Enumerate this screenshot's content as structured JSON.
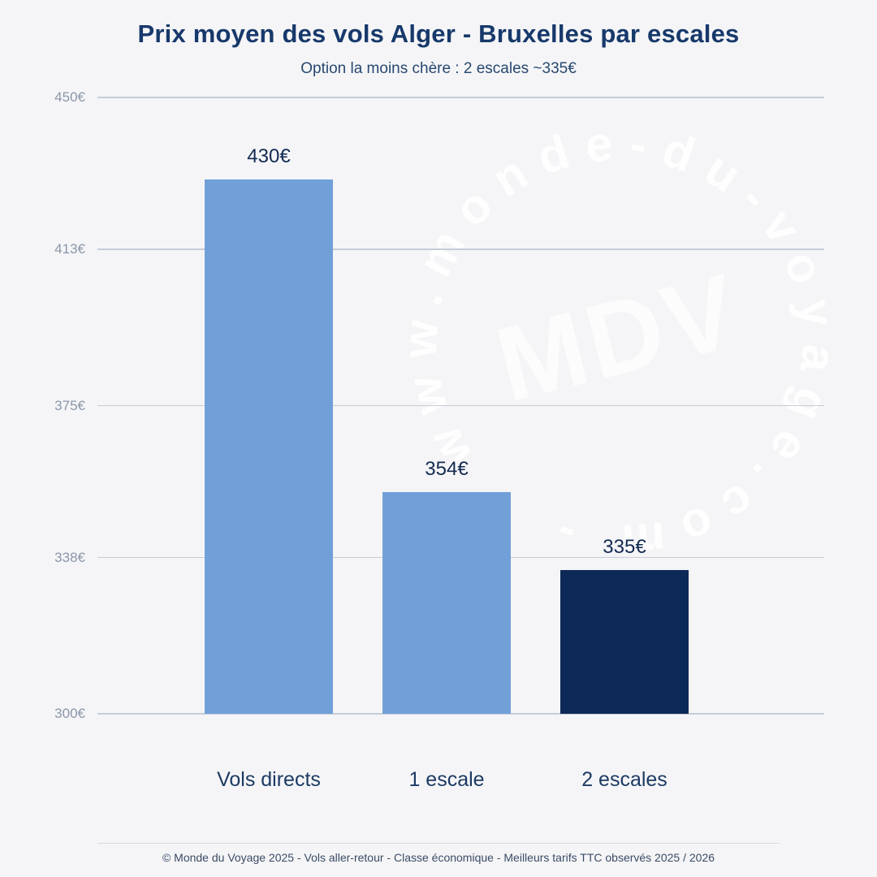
{
  "title": "Prix moyen des vols Alger - Bruxelles par escales",
  "subtitle": "Option la moins chère : 2 escales ~335€",
  "watermark": {
    "circle_text": "www.monde-du-voyage.com -",
    "center_text": "MDV"
  },
  "footer": "© Monde du Voyage 2025 - Vols aller-retour - Classe économique - Meilleurs tarifs TTC observés 2025 / 2026",
  "colors": {
    "background": "#f5f5f7",
    "title": "#17396b",
    "subtitle": "#27496f",
    "bar_default": "#71a0d8",
    "bar_highlight": "#0d2957",
    "grid": "#c6ccd8",
    "tick": "#8b96a9",
    "value_label": "#132a52",
    "category_label": "#1c3a63",
    "footer": "#3a4c66",
    "watermark": "#ffffff"
  },
  "chart_data": {
    "type": "bar",
    "title": "Prix moyen des vols Alger - Bruxelles par escales",
    "subtitle": "Option la moins chère : 2 escales ~335€",
    "categories": [
      "Vols directs",
      "1 escale",
      "2 escales"
    ],
    "values": [
      430,
      354,
      335
    ],
    "value_labels": [
      "430€",
      "354€",
      "335€"
    ],
    "highlight_index": 2,
    "yticks": [
      450,
      413,
      375,
      338,
      300
    ],
    "ytick_labels": [
      "450€",
      "413€",
      "375€",
      "338€",
      "300€"
    ],
    "ylim": [
      300,
      450
    ],
    "xlabel": "",
    "ylabel": "",
    "grid": true,
    "legend": "none"
  }
}
